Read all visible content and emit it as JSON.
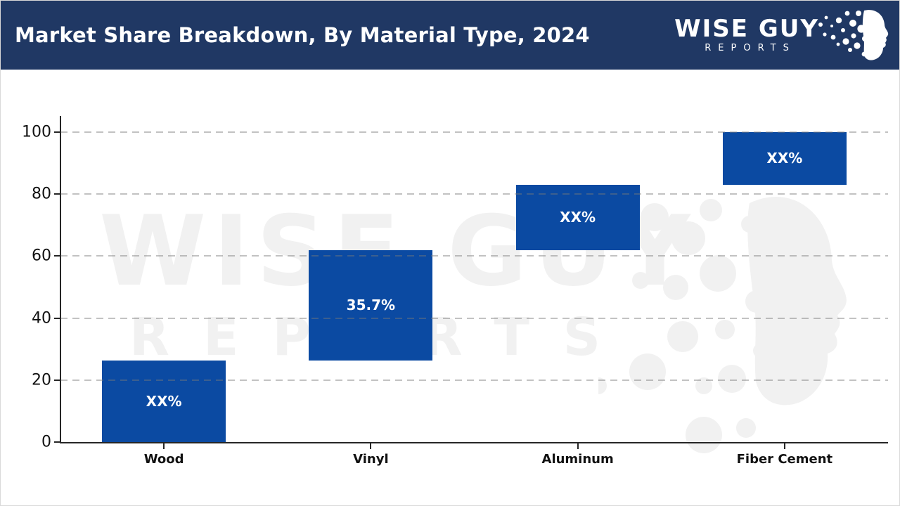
{
  "header": {
    "title": "Market Share Breakdown, By Material Type, 2024",
    "bg_color": "#203864",
    "logo": {
      "line1": "WISE GUY",
      "line2": "REPORTS"
    }
  },
  "watermark": {
    "line1": "WISE GUY",
    "line2": "REPORTS"
  },
  "chart_data": {
    "type": "bar",
    "subtype": "waterfall",
    "title": "Market Share Breakdown, By Material Type, 2024",
    "xlabel": "",
    "ylabel": "",
    "categories": [
      "Wood",
      "Vinyl",
      "Aluminum",
      "Fiber Cement"
    ],
    "segments": [
      {
        "category": "Wood",
        "start": 0,
        "end": 26.3,
        "value": 26.3,
        "label": "XX%"
      },
      {
        "category": "Vinyl",
        "start": 26.3,
        "end": 62.0,
        "value": 35.7,
        "label": "35.7%"
      },
      {
        "category": "Aluminum",
        "start": 62.0,
        "end": 83.0,
        "value": 21.0,
        "label": "XX%"
      },
      {
        "category": "Fiber Cement",
        "start": 83.0,
        "end": 100.0,
        "value": 17.0,
        "label": "XX%"
      }
    ],
    "bar_labels": [
      "XX%",
      "35.7%",
      "XX%",
      "XX%"
    ],
    "yticks": [
      0,
      20,
      40,
      60,
      80,
      100
    ],
    "ylim": [
      0,
      100
    ],
    "grid": "horizontal dashed, drawn over bars",
    "legend": "none",
    "bar_color": "#0b4aa2",
    "bar_label_color": "#ffffff",
    "axis_color": "#262626",
    "tick_label_color": "#111111"
  }
}
